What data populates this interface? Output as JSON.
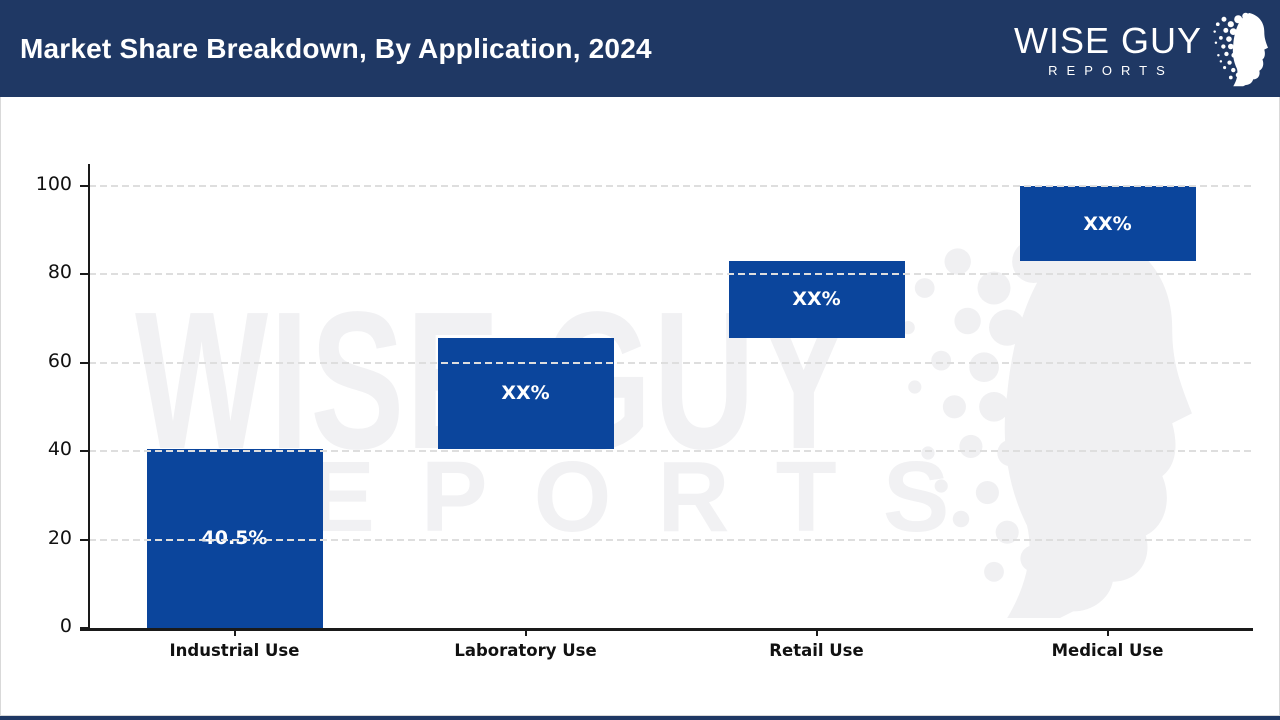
{
  "header": {
    "title": "Market Share Breakdown, By Application, 2024",
    "bg_color": "#1f3864",
    "logo": {
      "line1": "WISE GUY",
      "line2": "REPORTS"
    }
  },
  "watermark": {
    "line1": "WISE GUY",
    "line2": "REPORTS"
  },
  "footer": {
    "bar_color": "#1f3864"
  },
  "chart_data": {
    "type": "bar",
    "subtype": "floating-waterfall",
    "title": "Market Share Breakdown, By Application, 2024",
    "categories": [
      "Industrial Use",
      "Laboratory Use",
      "Retail Use",
      "Medical Use"
    ],
    "bars": [
      {
        "category": "Industrial Use",
        "label": "40.5%",
        "start": 0,
        "end": 40.5
      },
      {
        "category": "Laboratory Use",
        "label": "XX%",
        "start": 40.5,
        "end": 65.5
      },
      {
        "category": "Retail Use",
        "label": "XX%",
        "start": 65.5,
        "end": 83
      },
      {
        "category": "Medical Use",
        "label": "XX%",
        "start": 83,
        "end": 99.8
      }
    ],
    "yticks": [
      0,
      20,
      40,
      60,
      80,
      100
    ],
    "ytick_labels": [
      "0",
      "20",
      "40",
      "60",
      "80",
      "100"
    ],
    "ylim": [
      0,
      104.8
    ],
    "xlabel": "",
    "ylabel": "",
    "grid": "horizontal-dashed",
    "legend": "none",
    "bar_color": "#0b459c",
    "bar_label_color": "#ffffff",
    "axis_color": "#1a1a1a",
    "gridline_color": "#dedede",
    "tick_label_color": "#111111"
  }
}
